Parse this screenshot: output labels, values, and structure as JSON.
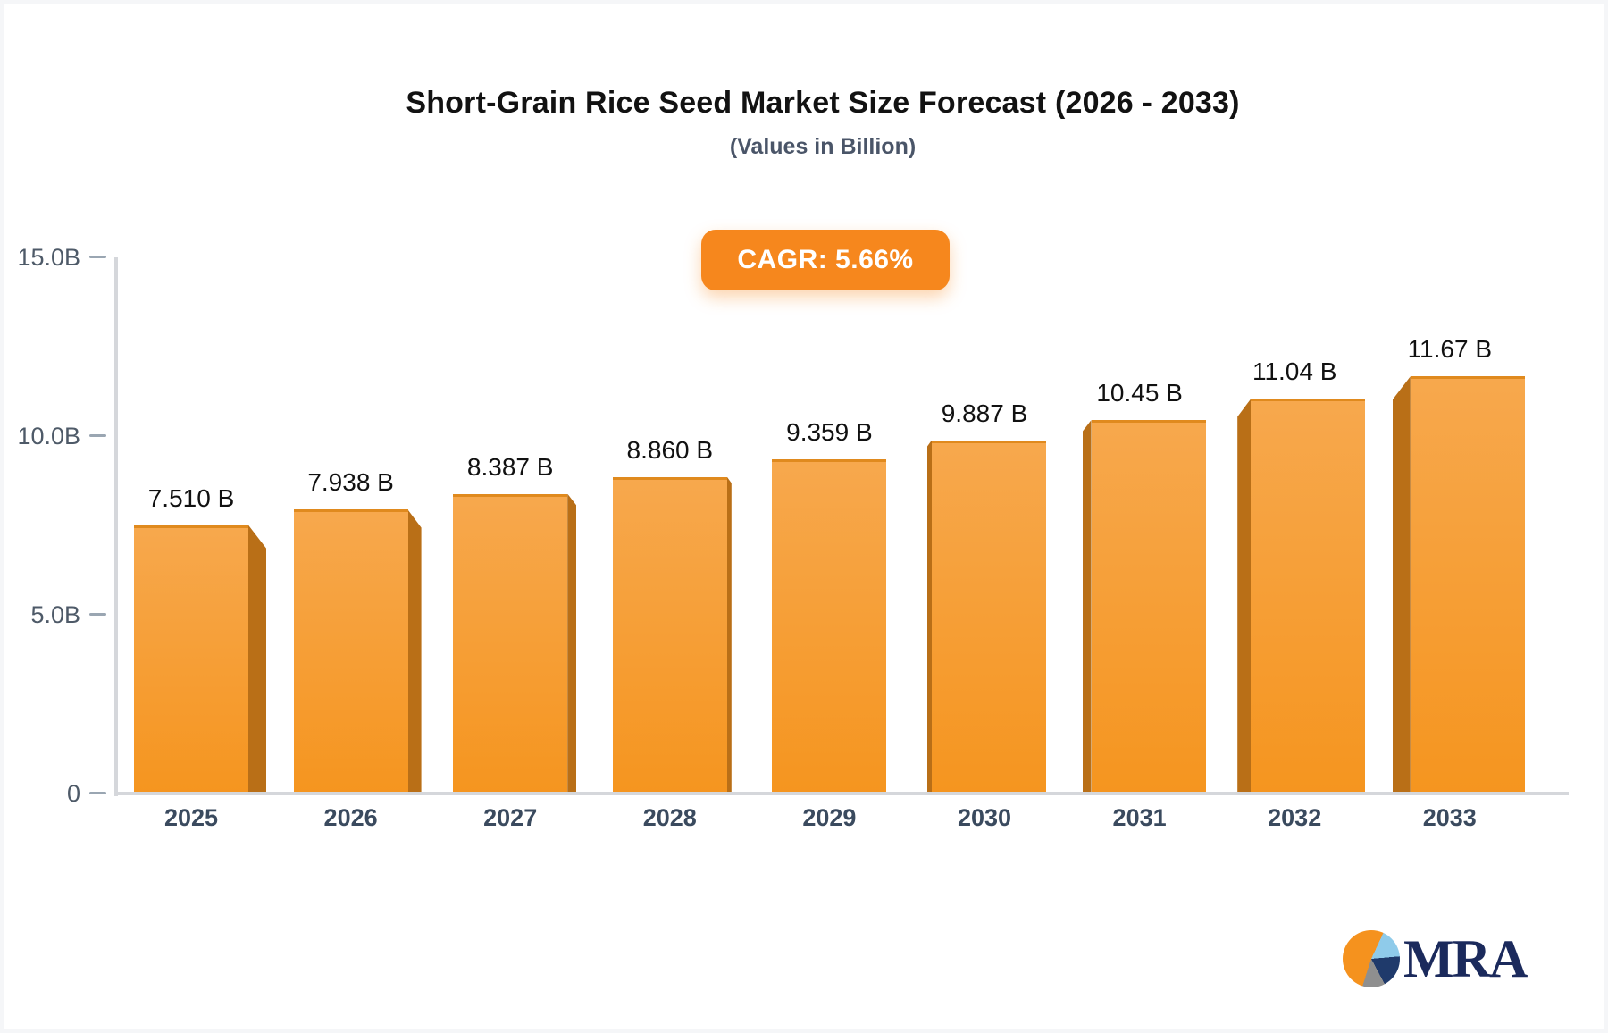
{
  "header": {
    "title": "Short-Grain Rice Seed Market Size Forecast (2026 - 2033)",
    "subtitle": "(Values in Billion)"
  },
  "badge": {
    "label": "CAGR: 5.66%"
  },
  "chart_data": {
    "type": "bar",
    "title": "Short-Grain Rice Seed Market Size Forecast (2026 - 2033)",
    "subtitle": "(Values in Billion)",
    "unit": "Billion",
    "cagr": "5.66%",
    "categories": [
      "2025",
      "2026",
      "2027",
      "2028",
      "2029",
      "2030",
      "2031",
      "2032",
      "2033"
    ],
    "values": [
      7.51,
      7.938,
      8.387,
      8.86,
      9.359,
      9.887,
      10.45,
      11.04,
      11.67
    ],
    "value_labels": [
      "7.510 B",
      "7.938 B",
      "8.387 B",
      "8.860 B",
      "9.359 B",
      "9.887 B",
      "10.45 B",
      "11.04 B",
      "11.67 B"
    ],
    "ylim": [
      0,
      15
    ],
    "yticks": [
      {
        "value": 15,
        "label": "15.0B"
      },
      {
        "value": 10,
        "label": "10.0B"
      },
      {
        "value": 5,
        "label": "5.0B"
      },
      {
        "value": 0,
        "label": "0"
      }
    ],
    "grid": "off",
    "legend": "none",
    "colors": {
      "bar_top": "#f7a84d",
      "bar_bottom": "#f5951f",
      "bar_side": "#b96f17",
      "bar_border": "#e08a1e",
      "axis": "#d5d7db",
      "tick": "#9aa6b2",
      "ytick_text": "#4e5a68",
      "xtick_text": "#3a4a5e",
      "value_text": "#111111",
      "badge_bg": "#f6871d",
      "badge_text": "#ffffff"
    }
  },
  "logo": {
    "text": "MRA",
    "pie_colors": {
      "orange": "#f5921e",
      "light_blue": "#8fcbea",
      "navy": "#1f3a6b",
      "gray": "#8f8f8f"
    }
  }
}
